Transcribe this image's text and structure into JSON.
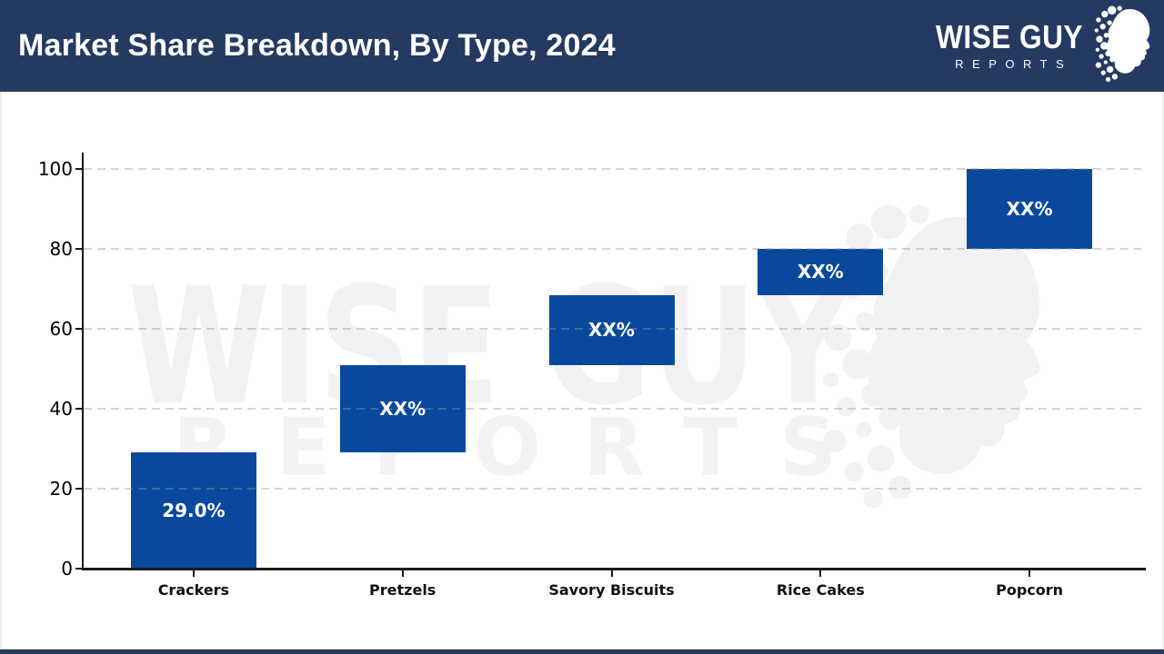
{
  "header": {
    "title": "Market Share Breakdown, By Type, 2024",
    "logo": {
      "brand": "WISE GUY",
      "tagline": "REPORTS"
    }
  },
  "watermark": {
    "brand": "WISE GUY",
    "tagline": "REPORTS"
  },
  "chart_data": {
    "type": "bar",
    "subtype": "waterfall",
    "title": "Market Share Breakdown, By Type, 2024",
    "categories": [
      "Crackers",
      "Pretzels",
      "Savory Biscuits",
      "Rice Cakes",
      "Popcorn"
    ],
    "segments": [
      {
        "category": "Crackers",
        "start": 0,
        "end": 29,
        "label": "29.0%"
      },
      {
        "category": "Pretzels",
        "start": 29,
        "end": 51,
        "label": "XX%"
      },
      {
        "category": "Savory Biscuits",
        "start": 51,
        "end": 68.5,
        "label": "XX%"
      },
      {
        "category": "Rice Cakes",
        "start": 68.5,
        "end": 80,
        "label": "XX%"
      },
      {
        "category": "Popcorn",
        "start": 80,
        "end": 100,
        "label": "XX%"
      }
    ],
    "yticks": [
      0,
      20,
      40,
      60,
      80,
      100
    ],
    "ylim": [
      0,
      104
    ],
    "grid": "horizontal-dashed",
    "legend": "none",
    "xlabel": "",
    "ylabel": "",
    "bar_color": "#09499d",
    "bar_label_color": "#ffffff",
    "axis_color": "#1a1a1a"
  },
  "colors": {
    "header_bg": "#243a63",
    "footer_bg": "#243a63",
    "watermark": "#f2f2f4",
    "grid": "#d5d5d5"
  }
}
